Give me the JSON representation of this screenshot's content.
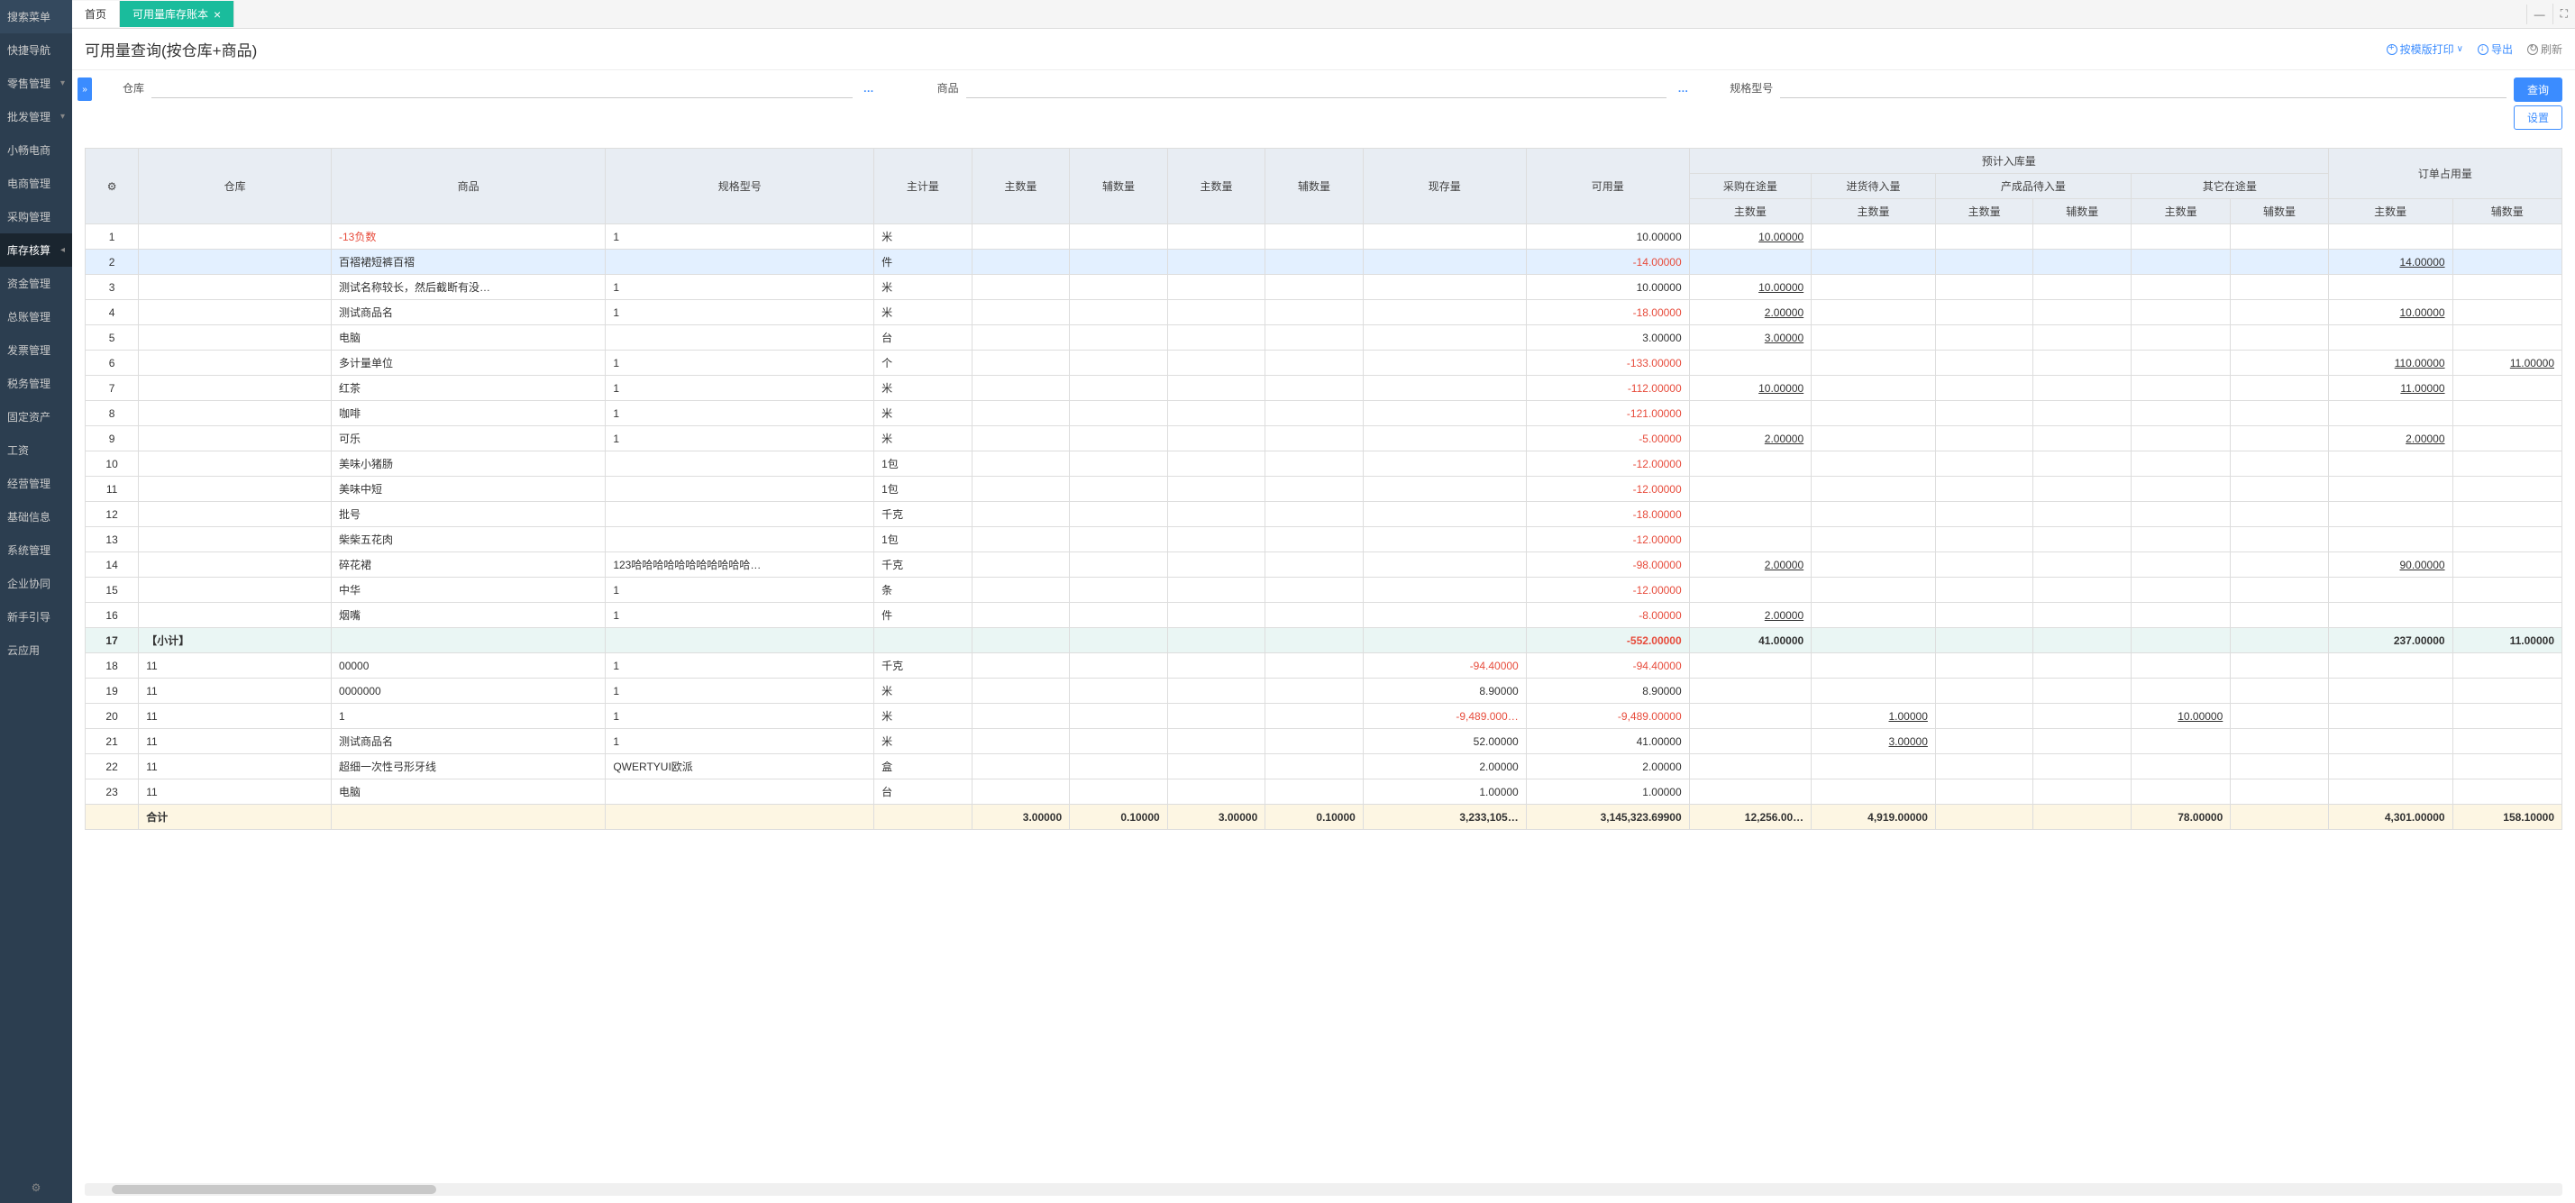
{
  "sidebar": {
    "items": [
      {
        "label": "搜索菜单",
        "arrow": false
      },
      {
        "label": "快捷导航",
        "arrow": false
      },
      {
        "label": "零售管理",
        "arrow": true
      },
      {
        "label": "批发管理",
        "arrow": true
      },
      {
        "label": "小畅电商",
        "arrow": false
      },
      {
        "label": "电商管理",
        "arrow": false
      },
      {
        "label": "采购管理",
        "arrow": false
      },
      {
        "label": "库存核算",
        "arrow": false,
        "active": true,
        "sideArrow": true
      },
      {
        "label": "资金管理",
        "arrow": false
      },
      {
        "label": "总账管理",
        "arrow": false
      },
      {
        "label": "发票管理",
        "arrow": false
      },
      {
        "label": "税务管理",
        "arrow": false
      },
      {
        "label": "固定资产",
        "arrow": false
      },
      {
        "label": "工资",
        "arrow": false
      },
      {
        "label": "经营管理",
        "arrow": false
      },
      {
        "label": "基础信息",
        "arrow": false
      },
      {
        "label": "系统管理",
        "arrow": false
      },
      {
        "label": "企业协同",
        "arrow": false
      },
      {
        "label": "新手引导",
        "arrow": false
      },
      {
        "label": "云应用",
        "arrow": false
      }
    ]
  },
  "tabs": {
    "home": "首页",
    "active": "可用量库存账本",
    "closeAll": "×",
    "resize": "⛶"
  },
  "title": "可用量查询(按仓库+商品)",
  "toolbar": {
    "print": "按模版打印",
    "export": "导出",
    "refresh": "刷新"
  },
  "filters": {
    "warehouse": "仓库",
    "product": "商品",
    "spec": "规格型号",
    "query": "查询",
    "settings": "设置"
  },
  "table": {
    "headers": {
      "gear": "⚙",
      "warehouse": "仓库",
      "product": "商品",
      "spec": "规格型号",
      "mainUnit": "主计量",
      "mainQty": "主数量",
      "auxQty": "辅数量",
      "mainQty2": "主数量",
      "auxQty2": "辅数量",
      "stock": "现存量",
      "available": "可用量",
      "expectedIn": "预计入库量",
      "purchaseInTransit": "采购在途量",
      "goodsWaitIn": "进货待入量",
      "finishedWaitIn": "产成品待入量",
      "otherInTransit": "其它在途量",
      "orderOccupy": "订单占用量",
      "sub_main": "主数量",
      "sub_aux": "辅数量"
    },
    "rows": [
      {
        "idx": "1",
        "wh": "",
        "prod": "-13负数",
        "prodNeg": true,
        "spec": "1",
        "unit": "米",
        "avail": "10.00000",
        "c1": "10.00000",
        "c1link": true
      },
      {
        "idx": "2",
        "wh": "",
        "prod": "百褶裙短裤百褶",
        "spec": "",
        "unit": "件",
        "avail": "-14.00000",
        "availNeg": true,
        "oc1": "14.00000",
        "oc1link": true,
        "hl": true
      },
      {
        "idx": "3",
        "wh": "",
        "prod": "测试名称较长，然后截断有没…",
        "spec": "1",
        "unit": "米",
        "avail": "10.00000",
        "c1": "10.00000",
        "c1link": true
      },
      {
        "idx": "4",
        "wh": "",
        "prod": "测试商品名",
        "spec": "1",
        "unit": "米",
        "avail": "-18.00000",
        "availNeg": true,
        "c1": "2.00000",
        "c1link": true,
        "oc1": "10.00000",
        "oc1link": true
      },
      {
        "idx": "5",
        "wh": "",
        "prod": "电脑",
        "spec": "",
        "unit": "台",
        "avail": "3.00000",
        "c1": "3.00000",
        "c1link": true
      },
      {
        "idx": "6",
        "wh": "",
        "prod": "多计量单位",
        "spec": "1",
        "unit": "个",
        "avail": "-133.00000",
        "availNeg": true,
        "oc1": "110.00000",
        "oc1link": true,
        "oc2": "11.00000",
        "oc2link": true
      },
      {
        "idx": "7",
        "wh": "",
        "prod": "红茶",
        "spec": "1",
        "unit": "米",
        "avail": "-112.00000",
        "availNeg": true,
        "c1": "10.00000",
        "c1link": true,
        "oc1": "11.00000",
        "oc1link": true
      },
      {
        "idx": "8",
        "wh": "",
        "prod": "咖啡",
        "spec": "1",
        "unit": "米",
        "avail": "-121.00000",
        "availNeg": true
      },
      {
        "idx": "9",
        "wh": "",
        "prod": "可乐",
        "spec": "1",
        "unit": "米",
        "avail": "-5.00000",
        "availNeg": true,
        "c1": "2.00000",
        "c1link": true,
        "oc1": "2.00000",
        "oc1link": true
      },
      {
        "idx": "10",
        "wh": "",
        "prod": "美味小猪肠",
        "spec": "",
        "unit": "1包",
        "avail": "-12.00000",
        "availNeg": true
      },
      {
        "idx": "11",
        "wh": "",
        "prod": "美味中短",
        "spec": "",
        "unit": "1包",
        "avail": "-12.00000",
        "availNeg": true
      },
      {
        "idx": "12",
        "wh": "",
        "prod": "批号",
        "spec": "",
        "unit": "千克",
        "avail": "-18.00000",
        "availNeg": true
      },
      {
        "idx": "13",
        "wh": "",
        "prod": "柴柴五花肉",
        "spec": "",
        "unit": "1包",
        "avail": "-12.00000",
        "availNeg": true
      },
      {
        "idx": "14",
        "wh": "",
        "prod": "碎花裙",
        "spec": "123哈哈哈哈哈哈哈哈哈哈哈…",
        "unit": "千克",
        "avail": "-98.00000",
        "availNeg": true,
        "c1": "2.00000",
        "c1link": true,
        "oc1": "90.00000",
        "oc1link": true
      },
      {
        "idx": "15",
        "wh": "",
        "prod": "中华",
        "spec": "1",
        "unit": "条",
        "avail": "-12.00000",
        "availNeg": true
      },
      {
        "idx": "16",
        "wh": "",
        "prod": "烟嘴",
        "spec": "1",
        "unit": "件",
        "avail": "-8.00000",
        "availNeg": true,
        "c1": "2.00000",
        "c1link": true
      },
      {
        "idx": "17",
        "wh": "【小计】",
        "prod": "",
        "spec": "",
        "unit": "",
        "avail": "-552.00000",
        "availNeg": true,
        "c1": "41.00000",
        "oc1": "237.00000",
        "oc2": "11.00000",
        "subtotal": true
      },
      {
        "idx": "18",
        "wh": "11",
        "prod": "00000",
        "spec": "1",
        "unit": "千克",
        "stock": "-94.40000",
        "stockNeg": true,
        "avail": "-94.40000",
        "availNeg": true
      },
      {
        "idx": "19",
        "wh": "11",
        "prod": "0000000",
        "spec": "1",
        "unit": "米",
        "stock": "8.90000",
        "avail": "8.90000"
      },
      {
        "idx": "20",
        "wh": "11",
        "prod": "1",
        "spec": "1",
        "unit": "米",
        "stock": "-9,489.000…",
        "stockNeg": true,
        "avail": "-9,489.00000",
        "availNeg": true,
        "c2": "1.00000",
        "c2link": true,
        "c4": "10.00000",
        "c4link": true
      },
      {
        "idx": "21",
        "wh": "11",
        "prod": "测试商品名",
        "spec": "1",
        "unit": "米",
        "stock": "52.00000",
        "avail": "41.00000",
        "c2": "3.00000",
        "c2link": true
      },
      {
        "idx": "22",
        "wh": "11",
        "prod": "超细一次性弓形牙线",
        "spec": "QWERTYUI欧派",
        "unit": "盒",
        "stock": "2.00000",
        "avail": "2.00000"
      },
      {
        "idx": "23",
        "wh": "11",
        "prod": "电脑",
        "spec": "",
        "unit": "台",
        "stock": "1.00000",
        "avail": "1.00000"
      }
    ],
    "total": {
      "label": "合计",
      "mainQty": "3.00000",
      "auxQty": "0.10000",
      "mainQty2": "3.00000",
      "auxQty2": "0.10000",
      "stock": "3,233,105…",
      "avail": "3,145,323.69900",
      "c1": "12,256.00…",
      "c2": "4,919.00000",
      "c4": "78.00000",
      "oc1": "4,301.00000",
      "oc2": "158.10000"
    }
  }
}
